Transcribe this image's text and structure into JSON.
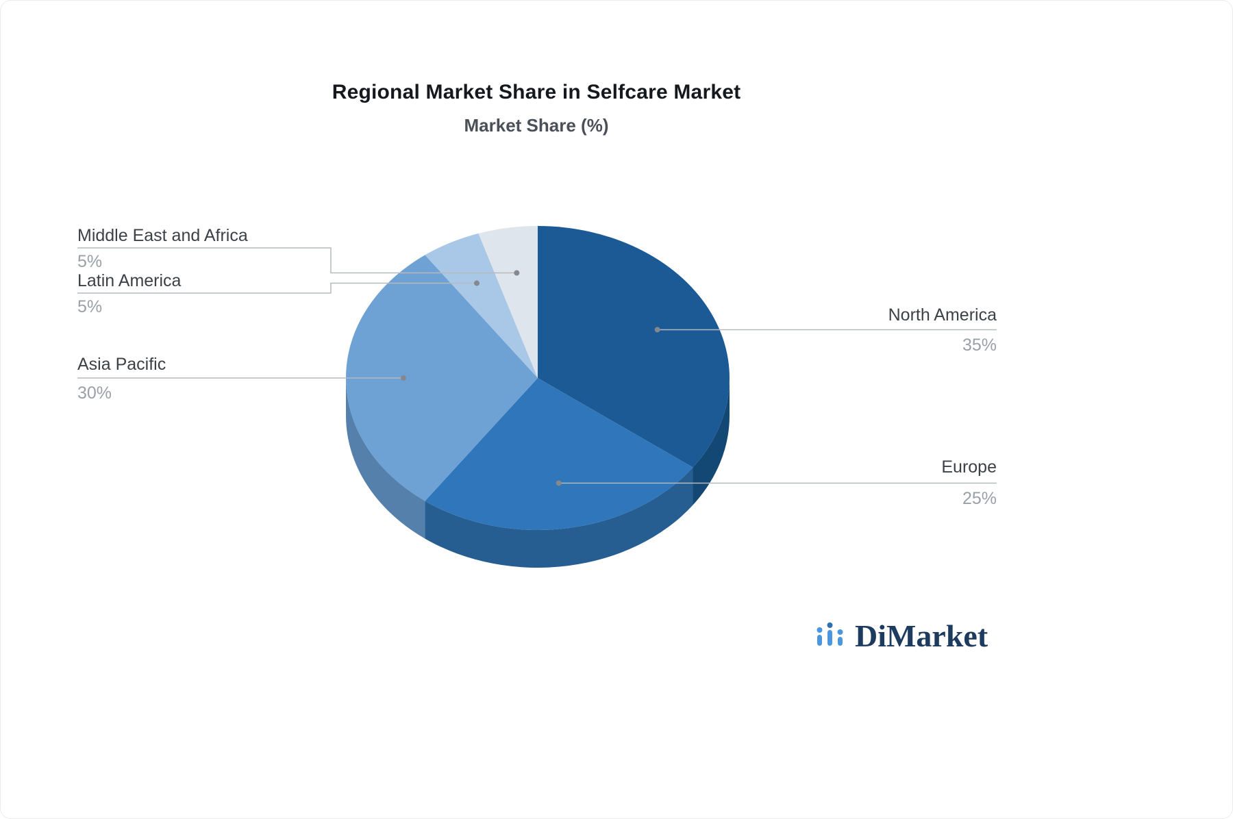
{
  "chart_data": {
    "type": "pie",
    "title": "Regional Market Share in Selfcare Market",
    "subtitle": "Market Share (%)",
    "unit": "%",
    "start_angle_deg": 0,
    "direction": "clockwise",
    "legend_position": "callout-labels",
    "style": "3d-pie",
    "slices": [
      {
        "label": "North America",
        "value": 35,
        "value_label": "35%",
        "color": "#1b5a94",
        "side_color": "#134874"
      },
      {
        "label": "Europe",
        "value": 25,
        "value_label": "25%",
        "color": "#2f76ba",
        "side_color": "#265e92"
      },
      {
        "label": "Asia Pacific",
        "value": 30,
        "value_label": "30%",
        "color": "#6fa2d4",
        "side_color": "#5480ab"
      },
      {
        "label": "Latin America",
        "value": 5,
        "value_label": "5%",
        "color": "#a9c7e6",
        "side_color": "#8aa9c8"
      },
      {
        "label": "Middle East and Africa",
        "value": 5,
        "value_label": "5%",
        "color": "#dfe5ec",
        "side_color": "#c0c8d2"
      }
    ]
  },
  "palette": {
    "leader_line": "#b6babe",
    "leader_dot": "#85898e",
    "label_text": "#3c4147",
    "value_text": "#9aa0a7",
    "logo_text": "#1d3a5f",
    "logo_icon": "#4a97dd"
  },
  "brand": {
    "name": "DiMarket",
    "icon": "bar-chart-dots-icon"
  }
}
